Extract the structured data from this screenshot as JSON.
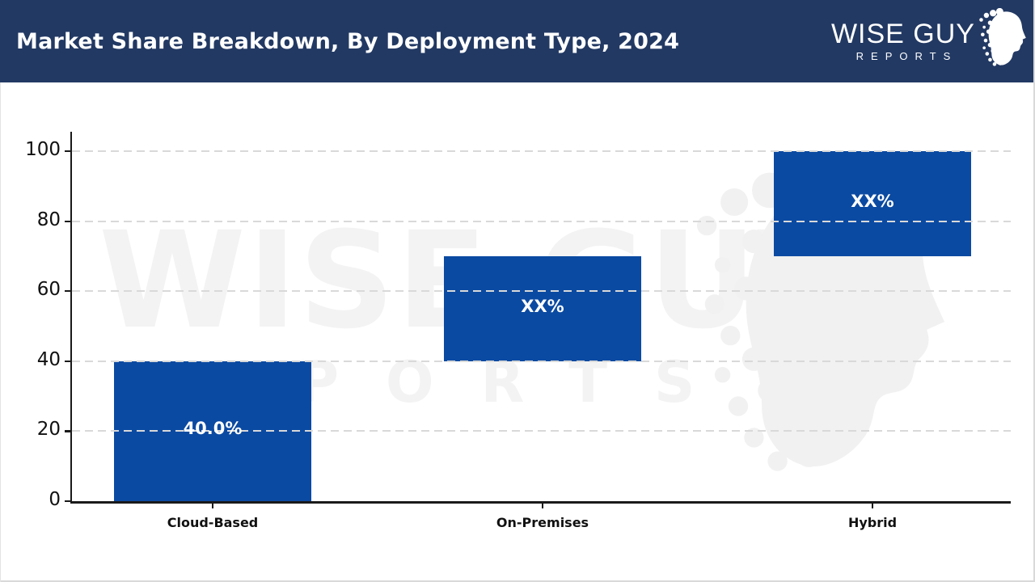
{
  "header": {
    "title": "Market Share Breakdown, By Deployment Type, 2024",
    "logo": {
      "line1": "WISE GUY",
      "line2": "REPORTS"
    }
  },
  "watermark": {
    "line1": "WISE GUY",
    "line2": "REPORTS"
  },
  "colors": {
    "header_bg": "#223963",
    "bar_blue": "#0b4aa2",
    "grid": "#d9d9d9",
    "axis": "#1a1a1a",
    "watermark": "#f2f2f2",
    "bar_label": "#ffffff"
  },
  "chart_data": {
    "type": "bar",
    "subtype": "waterfall",
    "title": "Market Share Breakdown, By Deployment Type, 2024",
    "categories": [
      "Cloud-Based",
      "On-Premises",
      "Hybrid"
    ],
    "segments": [
      {
        "category": "Cloud-Based",
        "start": 0,
        "end": 40,
        "label": "40.0%"
      },
      {
        "category": "On-Premises",
        "start": 40,
        "end": 70,
        "label": "XX%"
      },
      {
        "category": "Hybrid",
        "start": 70,
        "end": 100,
        "label": "XX%"
      }
    ],
    "values": [
      40,
      30,
      30
    ],
    "xlabel": "",
    "ylabel": "",
    "yticks": [
      0,
      20,
      40,
      60,
      80,
      100
    ],
    "ylim": [
      0,
      105
    ],
    "grid": "horizontal-dashed",
    "legend": "none",
    "bar_color": "#0b4aa2",
    "label_color": "#ffffff"
  }
}
